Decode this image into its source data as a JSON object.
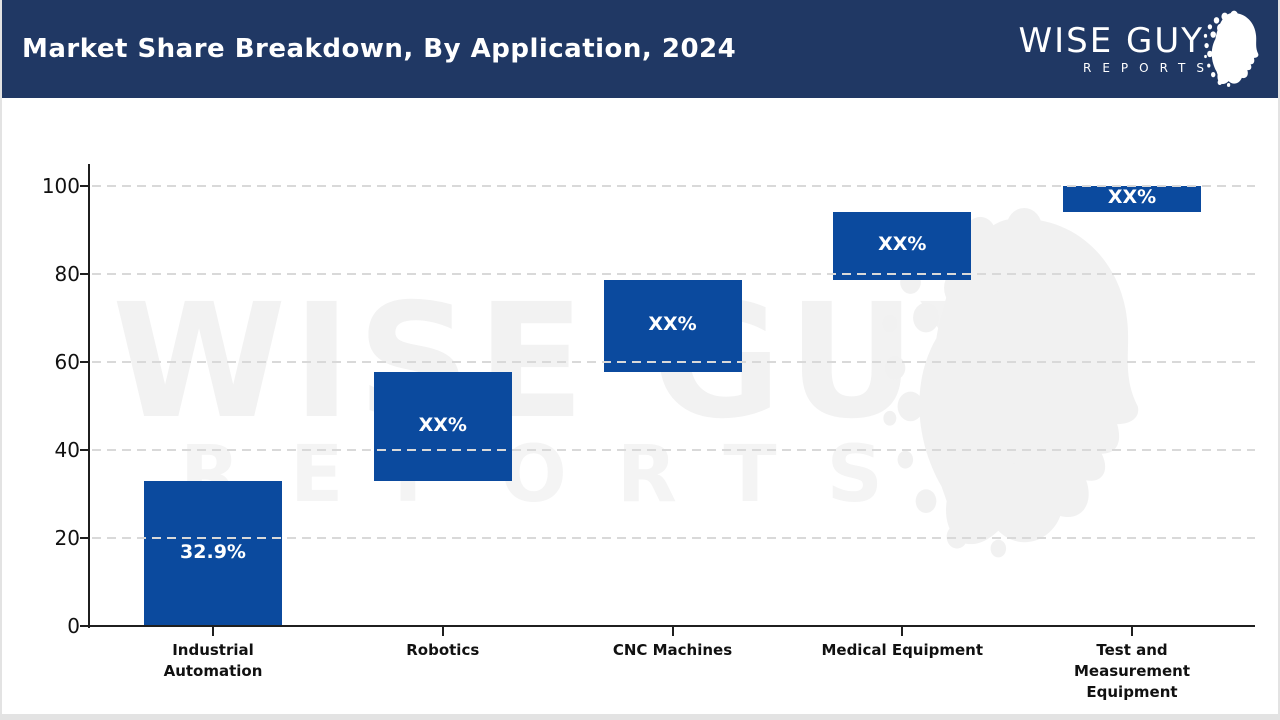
{
  "header": {
    "title": "Market Share Breakdown, By Application, 2024",
    "logo_line1": "WISE GUY",
    "logo_line2": "REPORTS",
    "bg_color": "#203864"
  },
  "watermark": {
    "line1": "WISE GUY",
    "line2": "REPORTS"
  },
  "footer": {
    "color": "#e3e3e3"
  },
  "chart_data": {
    "type": "bar",
    "subtype": "waterfall",
    "title": "Market Share Breakdown, By Application, 2024",
    "categories": [
      "Industrial Automation",
      "Robotics",
      "CNC Machines",
      "Medical Equipment",
      "Test and Measurement Equipment"
    ],
    "categories_display": [
      [
        "Industrial",
        "Automation"
      ],
      [
        "Robotics"
      ],
      [
        "CNC Machines"
      ],
      [
        "Medical Equipment"
      ],
      [
        "Test and",
        "Measurement",
        "Equipment"
      ]
    ],
    "series": [
      {
        "name": "Market Share",
        "segments": [
          {
            "start": 0,
            "end": 32.9,
            "label": "32.9%"
          },
          {
            "start": 32.9,
            "end": 57.7,
            "label": "XX%"
          },
          {
            "start": 57.7,
            "end": 78.7,
            "label": "XX%"
          },
          {
            "start": 78.7,
            "end": 94.1,
            "label": "XX%"
          },
          {
            "start": 94.1,
            "end": 100,
            "label": "XX%"
          }
        ]
      }
    ],
    "xlabel": "",
    "ylabel": "",
    "ylim": [
      0,
      100
    ],
    "yticks": [
      0,
      20,
      40,
      60,
      80,
      100
    ],
    "grid": "horizontal-dashed",
    "grid_color": "#d9d9d9",
    "bar_color": "#0b4a9e",
    "bar_label_color": "#ffffff",
    "legend": "none"
  }
}
